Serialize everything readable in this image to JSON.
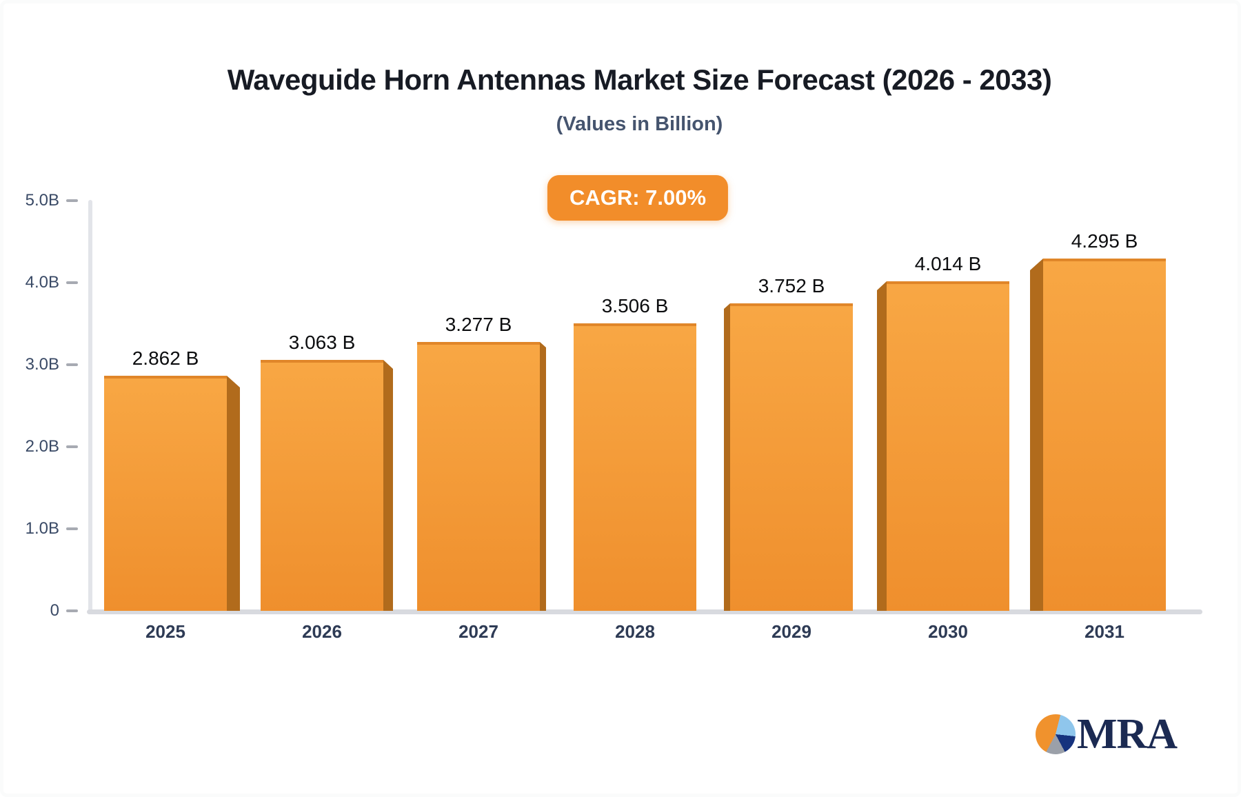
{
  "title": "Waveguide Horn Antennas Market Size Forecast (2026 - 2033)",
  "subtitle": "(Values in Billion)",
  "badge": {
    "label": "CAGR: 7.00%",
    "bg": "#F28D2A",
    "text_color": "#FFFFFF"
  },
  "chart_data": {
    "type": "bar",
    "categories": [
      "2025",
      "2026",
      "2027",
      "2028",
      "2029",
      "2030",
      "2031"
    ],
    "values": [
      2.862,
      3.063,
      3.277,
      3.506,
      3.752,
      4.014,
      4.295
    ],
    "value_labels": [
      "2.862 B",
      "3.063 B",
      "3.277 B",
      "3.506 B",
      "3.752 B",
      "4.014 B",
      "4.295 B"
    ],
    "title": "Waveguide Horn Antennas Market Size Forecast (2026 - 2033)",
    "xlabel": "",
    "ylabel": "",
    "ylim": [
      0,
      5
    ],
    "yticks": [
      "0",
      "1.0B",
      "2.0B",
      "3.0B",
      "4.0B",
      "5.0B"
    ],
    "grid": false,
    "legend": false,
    "style": "3d-extruded-bars",
    "bar_color_top": "#F8A744",
    "bar_color_bottom": "#EF8F2D",
    "bar_edge_color": "#E08629",
    "bar_side_color": "#B16B1C"
  },
  "logo": {
    "text": "MRA",
    "pie_colors": {
      "orange": "#F0922D",
      "light_blue": "#8FC6EC",
      "navy": "#16337E",
      "gray": "#9BA0A9"
    },
    "text_color": "#1B2A52"
  }
}
